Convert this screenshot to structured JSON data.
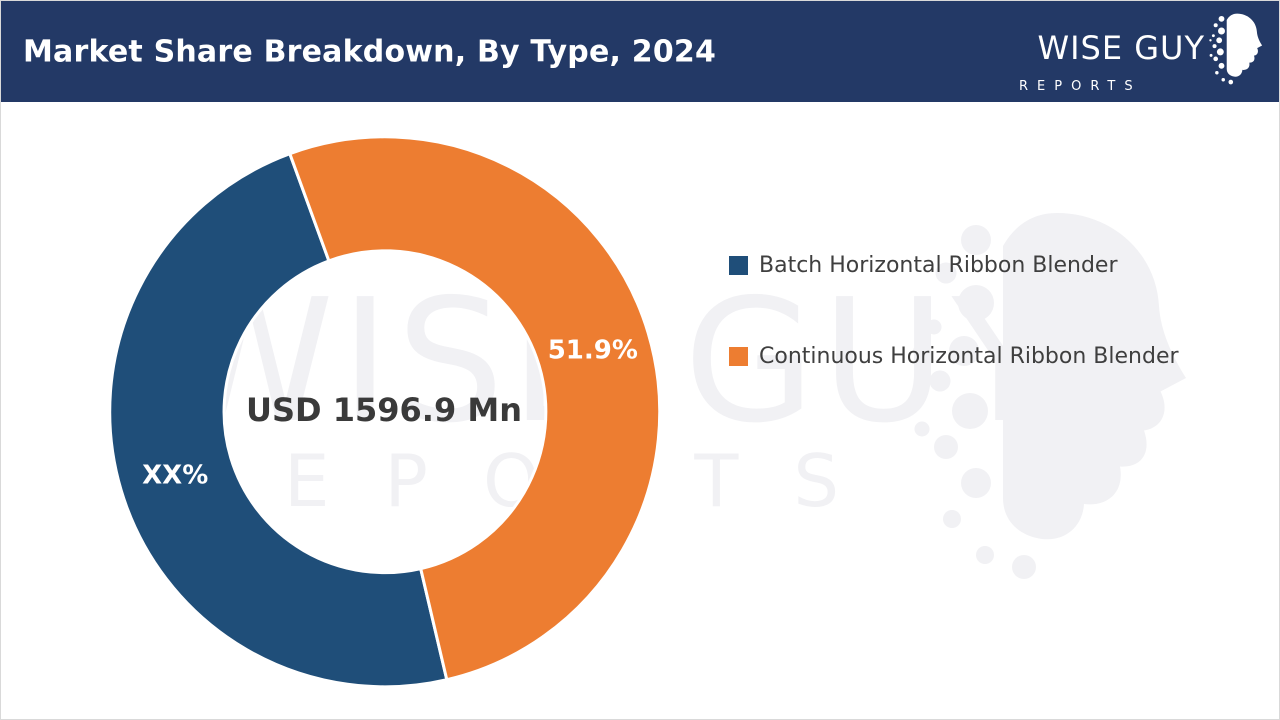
{
  "header": {
    "title": "Market Share Breakdown, By Type, 2024",
    "logo": {
      "brand": "WISE GUY",
      "sub": "REPORTS"
    }
  },
  "watermark": {
    "brand": "WISE GUY",
    "sub": "REPORTS"
  },
  "chart_data": {
    "type": "pie",
    "subtype": "donut",
    "title": "Market Share Breakdown, By Type, 2024",
    "center_label": "USD 1596.9 Mn",
    "units": "percent market share",
    "start_angle_deg": 166.8,
    "donut_hole_ratio": 0.585,
    "legend_position": "right",
    "series": [
      {
        "name": "Batch Horizontal Ribbon Blender",
        "value": 48.1,
        "data_label": "XX%",
        "color": "#1F4E79"
      },
      {
        "name": "Continuous Horizontal Ribbon Blender",
        "value": 51.9,
        "data_label": "51.9%",
        "color": "#ED7D31"
      }
    ]
  },
  "colors": {
    "header_bg": "#233966",
    "page_border": "#d9d9d9",
    "slice_blue": "#1F4E79",
    "slice_orange": "#ED7D31",
    "center_text": "#3a3a3a",
    "legend_text": "#3f3f3f",
    "watermark": "#f1f1f4"
  }
}
